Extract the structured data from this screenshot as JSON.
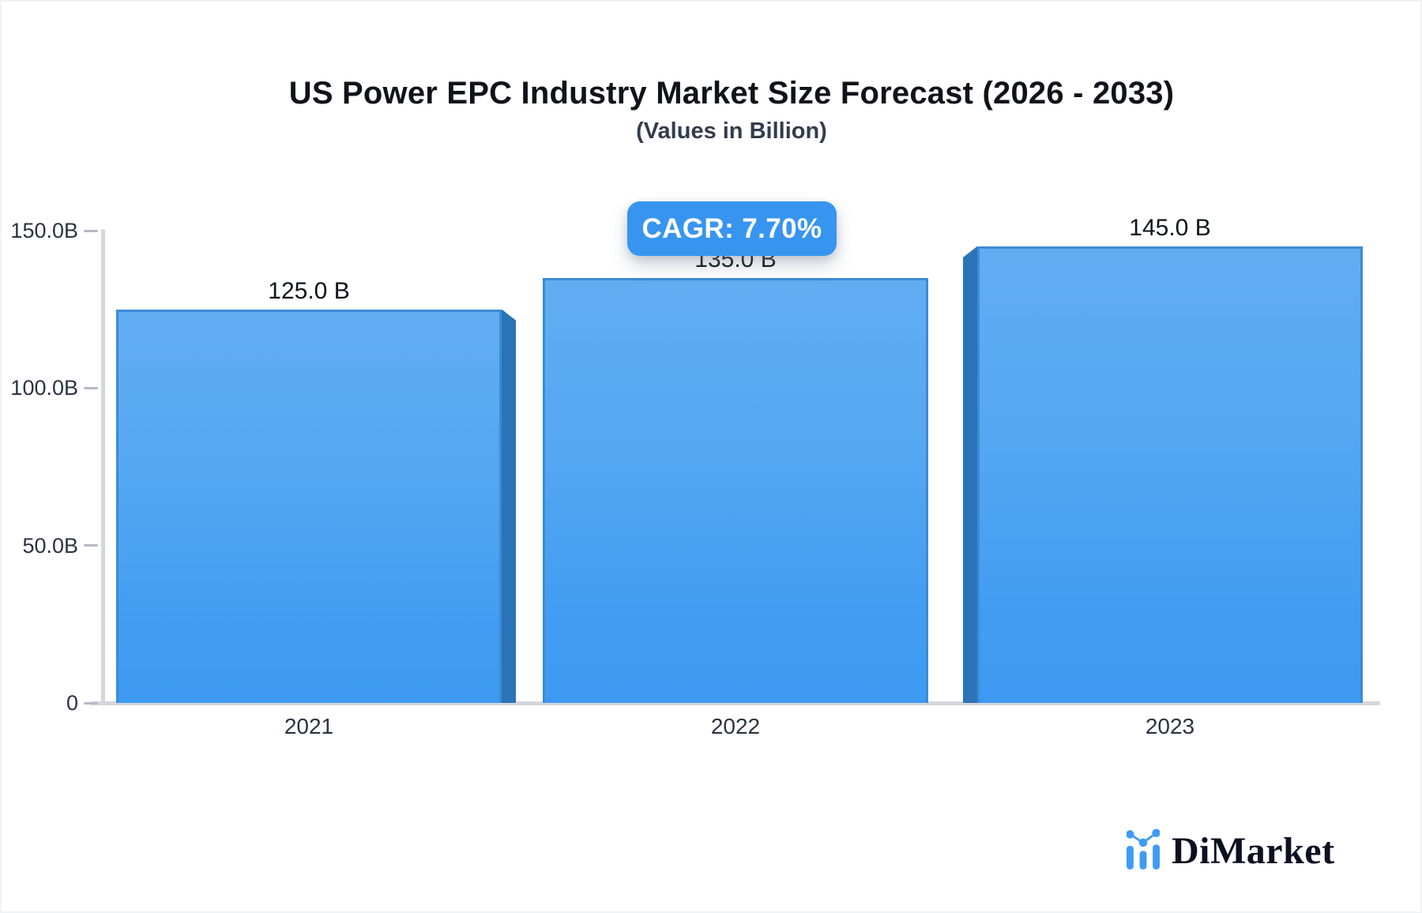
{
  "chart_data": {
    "type": "bar",
    "title": "US Power EPC Industry Market Size Forecast (2026 - 2033)",
    "subtitle": "(Values in Billion)",
    "categories": [
      "2021",
      "2022",
      "2023"
    ],
    "values": [
      125.0,
      135.0,
      145.0
    ],
    "value_labels": [
      "125.0 B",
      "135.0 B",
      "145.0 B"
    ],
    "ylim": [
      0,
      150
    ],
    "yticks": [
      {
        "label": "150.0B",
        "value": 150
      },
      {
        "label": "100.0B",
        "value": 100
      },
      {
        "label": "50.0B",
        "value": 50
      },
      {
        "label": "0",
        "value": 0
      }
    ],
    "annotation": {
      "label": "CAGR: 7.70%"
    },
    "grid": "off",
    "legend": "none",
    "bar_color_top": "#61adf2",
    "bar_color_bottom": "#3d9af2",
    "bar_border_color": "#3c8bd6",
    "bar_side_color": "#2b73b7",
    "badge_color": "#3795f0",
    "axis_color": "#d5d7dd"
  },
  "branding": {
    "name": "DiMarket",
    "icon": "bar-chart-logo-icon",
    "icon_color": "#3f9bf3",
    "text_color": "#0c1020"
  }
}
